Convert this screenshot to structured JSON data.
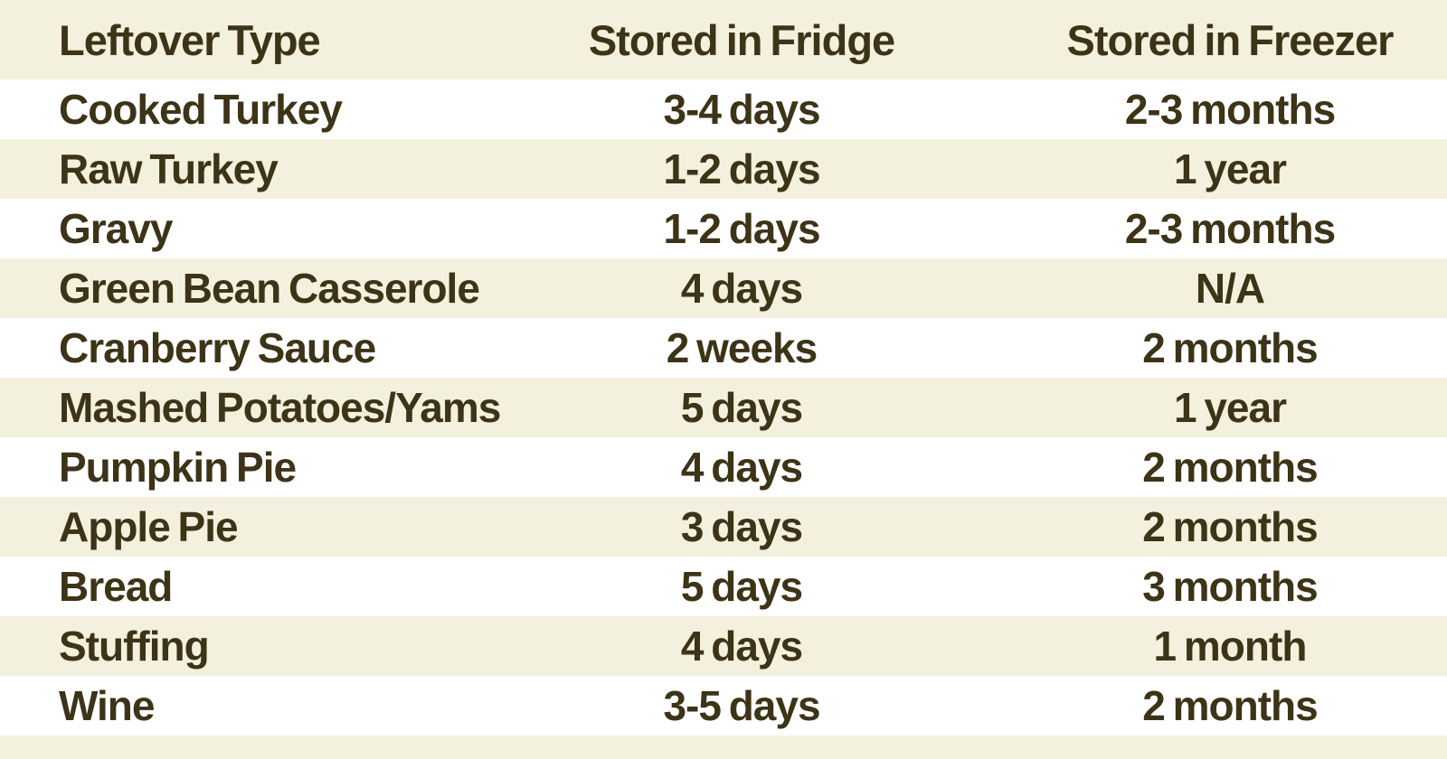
{
  "chart_data": {
    "type": "table",
    "columns": [
      "Leftover Type",
      "Stored in Fridge",
      "Stored in Freezer"
    ],
    "rows": [
      [
        "Cooked Turkey",
        "3-4 days",
        "2-3 months"
      ],
      [
        "Raw Turkey",
        "1-2 days",
        "1 year"
      ],
      [
        "Gravy",
        "1-2 days",
        "2-3 months"
      ],
      [
        "Green Bean Casserole",
        "4 days",
        "N/A"
      ],
      [
        "Cranberry Sauce",
        "2 weeks",
        "2 months"
      ],
      [
        "Mashed Potatoes/Yams",
        "5 days",
        "1 year"
      ],
      [
        "Pumpkin Pie",
        "4 days",
        "2 months"
      ],
      [
        "Apple Pie",
        "3 days",
        "2 months"
      ],
      [
        "Bread",
        "5 days",
        "3 months"
      ],
      [
        "Stuffing",
        "4 days",
        "1 month"
      ],
      [
        "Wine",
        "3-5 days",
        "2 months"
      ]
    ],
    "layout_hints": {
      "row_striping": "white and cream alternating, header and every even data row cream",
      "column_alignment": [
        "left",
        "center",
        "center"
      ]
    }
  },
  "colors": {
    "row_cream": "#f3f0de",
    "row_white": "#ffffff",
    "text_brown": "#3d3317"
  }
}
